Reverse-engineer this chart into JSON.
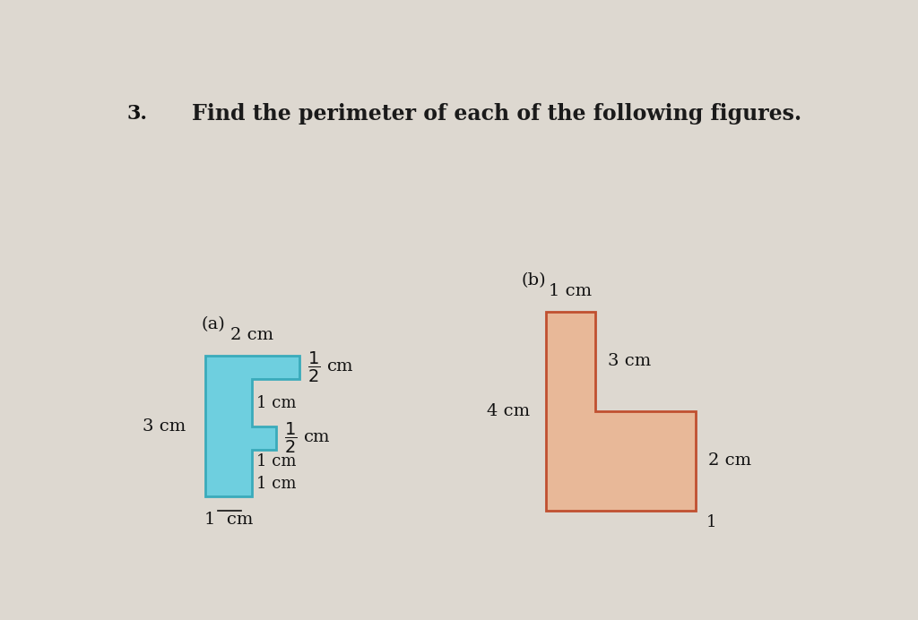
{
  "title": "Find the perimeter of each of the following figures.",
  "title_fontsize": 17,
  "bg_color": "#ddd8d0",
  "fig_a_color": "#6ecfdf",
  "fig_b_color": "#e8b898",
  "fig_b_stroke": "#c05030",
  "fig_a_stroke": "#3aabbb",
  "dim_fontsize": 14,
  "label_fontsize": 14,
  "label_a": "(a)",
  "label_b": "(b)",
  "num_label": "3."
}
